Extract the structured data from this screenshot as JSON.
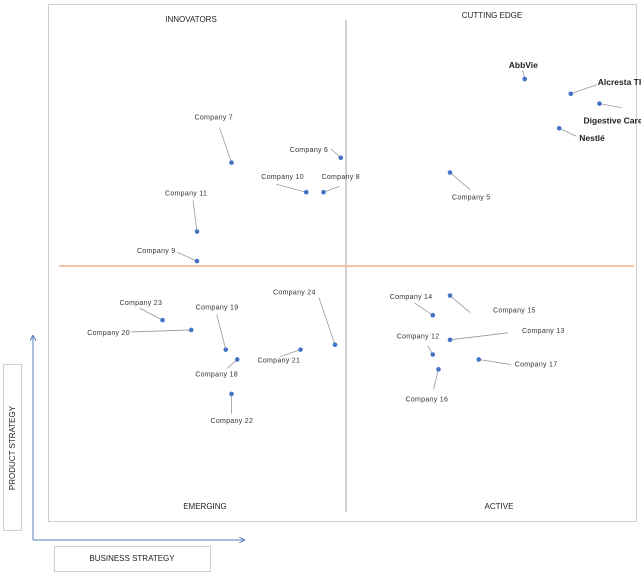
{
  "chart_data": {
    "type": "scatter",
    "title": "",
    "xlabel": "BUSINESS STRATEGY",
    "ylabel": "PRODUCT STRATEGY",
    "quadrants": {
      "top_left": "INNOVATORS",
      "top_right": "CUTTING EDGE",
      "bottom_left": "EMERGING",
      "bottom_right": "ACTIVE"
    },
    "colors": {
      "point": "#4472c4",
      "divider_horizontal": "#f4b183",
      "divider_vertical": "#a6a6a6",
      "leader": "#999999",
      "axis_arrow": "#5b7fbd",
      "frame": "#cfcfcf"
    },
    "points": [
      {
        "name": "AbbVie",
        "major": true,
        "x": 8.1,
        "y": 8.8
      },
      {
        "name": "Alcresta Therapeutics, Inc.",
        "major": true,
        "x": 8.9,
        "y": 8.5
      },
      {
        "name": "Digestive Care, Inc.",
        "major": true,
        "x": 9.4,
        "y": 8.3
      },
      {
        "name": "Nestlé",
        "major": true,
        "x": 8.7,
        "y": 7.8
      },
      {
        "name": "Company 5",
        "major": false,
        "x": 6.8,
        "y": 6.9
      },
      {
        "name": "Company 6",
        "major": false,
        "x": 4.9,
        "y": 7.2
      },
      {
        "name": "Company 7",
        "major": false,
        "x": 3.0,
        "y": 7.1
      },
      {
        "name": "Company 8",
        "major": false,
        "x": 4.6,
        "y": 6.5
      },
      {
        "name": "Company 10",
        "major": false,
        "x": 4.3,
        "y": 6.5
      },
      {
        "name": "Company 11",
        "major": false,
        "x": 2.4,
        "y": 5.7
      },
      {
        "name": "Company 9",
        "major": false,
        "x": 2.4,
        "y": 5.1
      },
      {
        "name": "Company 23",
        "major": false,
        "x": 1.8,
        "y": 3.9
      },
      {
        "name": "Company 20",
        "major": false,
        "x": 2.3,
        "y": 3.7
      },
      {
        "name": "Company 19",
        "major": false,
        "x": 2.9,
        "y": 3.3
      },
      {
        "name": "Company 18",
        "major": false,
        "x": 3.1,
        "y": 3.1
      },
      {
        "name": "Company 21",
        "major": false,
        "x": 4.2,
        "y": 3.3
      },
      {
        "name": "Company 24",
        "major": false,
        "x": 4.8,
        "y": 3.4
      },
      {
        "name": "Company 22",
        "major": false,
        "x": 3.0,
        "y": 2.4
      },
      {
        "name": "Company 14",
        "major": false,
        "x": 6.5,
        "y": 4.0
      },
      {
        "name": "Company 15",
        "major": false,
        "x": 6.8,
        "y": 4.4
      },
      {
        "name": "Company 12",
        "major": false,
        "x": 6.5,
        "y": 3.2
      },
      {
        "name": "Company 13",
        "major": false,
        "x": 6.8,
        "y": 3.5
      },
      {
        "name": "Company 17",
        "major": false,
        "x": 7.3,
        "y": 3.1
      },
      {
        "name": "Company 16",
        "major": false,
        "x": 6.6,
        "y": 2.9
      }
    ]
  }
}
